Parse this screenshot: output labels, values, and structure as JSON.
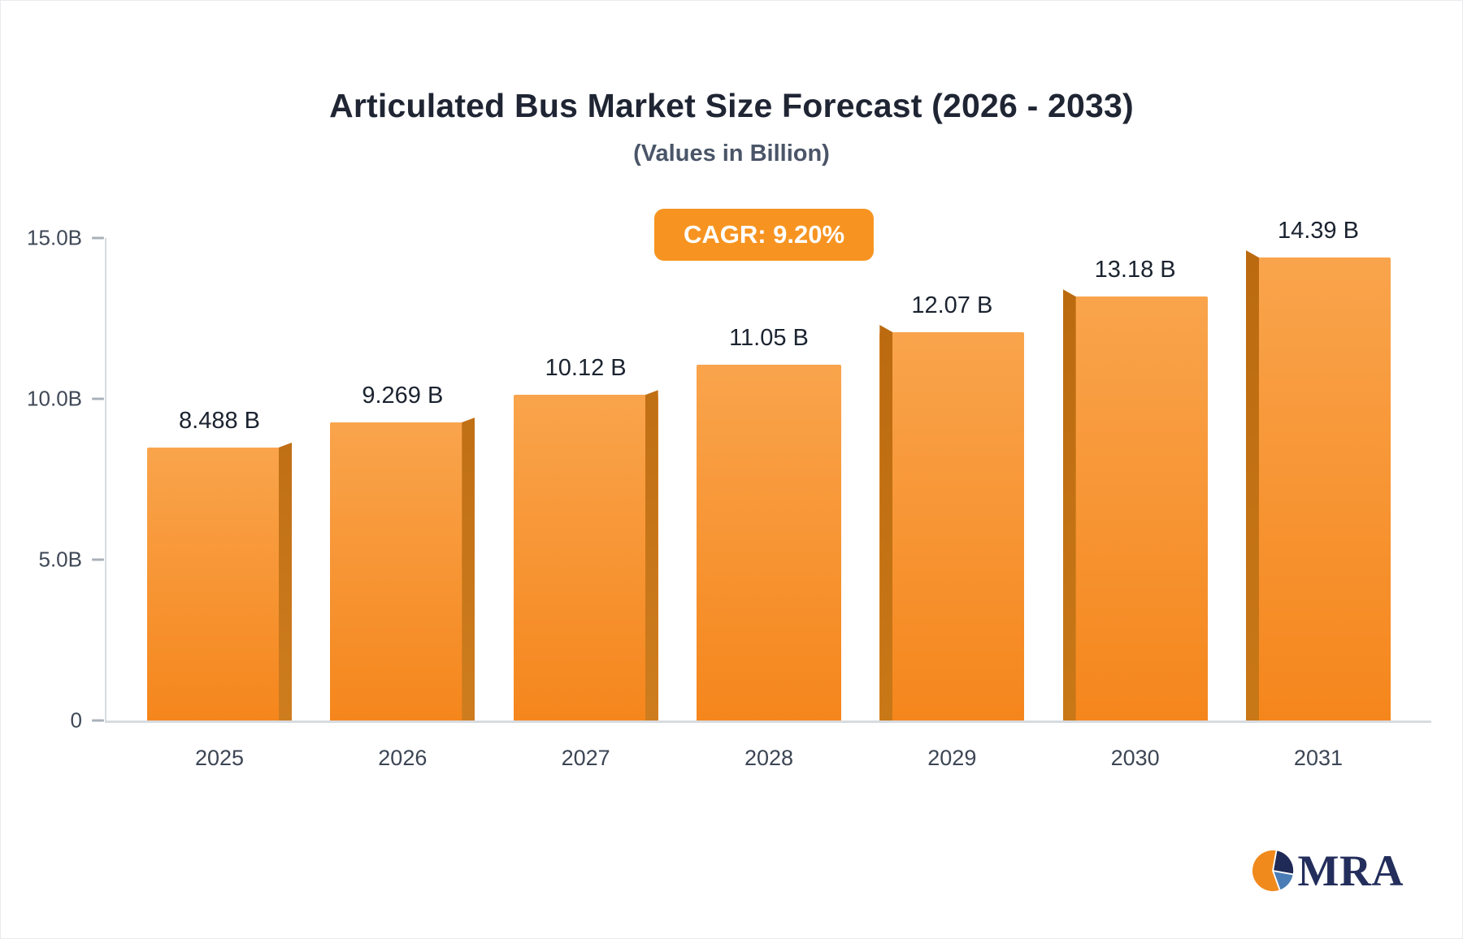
{
  "header": {
    "title": "Articulated Bus Market Size Forecast (2026 - 2033)",
    "subtitle": "(Values in Billion)"
  },
  "badge": {
    "label": "CAGR: 9.20%",
    "color": "#F79421"
  },
  "chart_data": {
    "type": "bar",
    "title": "Articulated Bus Market Size Forecast (2026 - 2033)",
    "subtitle": "(Values in Billion)",
    "categories": [
      "2025",
      "2026",
      "2027",
      "2028",
      "2029",
      "2030",
      "2031"
    ],
    "values": [
      8.488,
      9.269,
      10.12,
      11.05,
      12.07,
      13.18,
      14.39
    ],
    "value_labels": [
      "8.488 B",
      "9.269 B",
      "10.12 B",
      "11.05 B",
      "12.07 B",
      "13.18 B",
      "14.39 B"
    ],
    "ylabel_ticks": [
      "15.0B",
      "10.0B",
      "5.0B",
      "0"
    ],
    "ytick_values": [
      15,
      10,
      5,
      0
    ],
    "ylim": [
      0,
      15
    ],
    "grid": false,
    "legend": false,
    "bar_color_top": "#F9A44C",
    "bar_color_bottom": "#F5861C",
    "bar_edge_color": "#C0701A"
  },
  "logo": {
    "text": "MRA",
    "icon": "pie-icon",
    "colors": {
      "orange": "#F08A1D",
      "navy": "#1F2A56",
      "blue": "#4A7DB5"
    }
  }
}
